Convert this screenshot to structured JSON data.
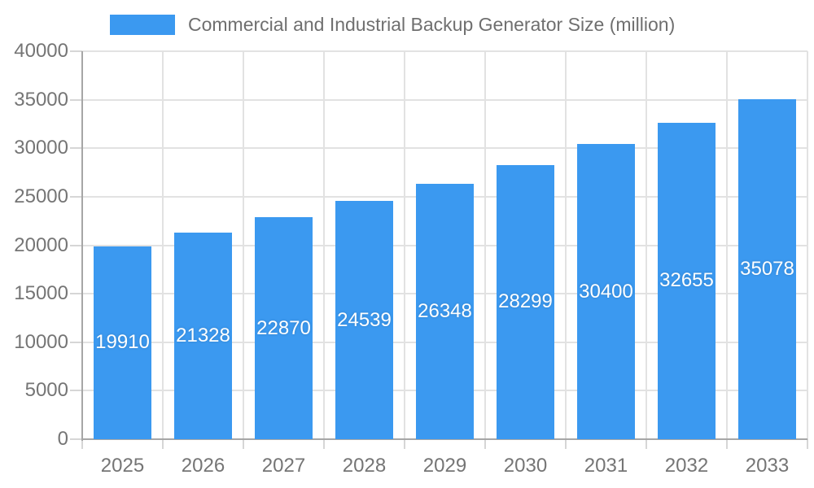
{
  "chart_data": {
    "type": "bar",
    "title": "Commercial and Industrial Backup Generator Size (million)",
    "categories": [
      "2025",
      "2026",
      "2027",
      "2028",
      "2029",
      "2030",
      "2031",
      "2032",
      "2033"
    ],
    "values": [
      19910,
      21328,
      22870,
      24539,
      26348,
      28299,
      30400,
      32655,
      35078
    ],
    "value_labels": [
      "19910",
      "21328",
      "22870",
      "24539",
      "26348",
      "28299",
      "30400",
      "32655",
      "35078"
    ],
    "xlabel": "",
    "ylabel": "",
    "ylim": [
      0,
      40000
    ],
    "ytick_step": 5000,
    "yticks": [
      0,
      5000,
      10000,
      15000,
      20000,
      25000,
      30000,
      35000,
      40000
    ],
    "ytick_labels": [
      "0",
      "5000",
      "10000",
      "15000",
      "20000",
      "25000",
      "30000",
      "35000",
      "40000"
    ],
    "grid": true,
    "legend_position": "top",
    "value_labels_position": "inside-center"
  },
  "colors": {
    "bar": "#3b99f0",
    "bar_value_label": "#ffffff",
    "axis_line": "#a6a6a6",
    "gridline": "#e2e2e2",
    "tick_mark": "#d6d6d6",
    "tick_label": "#757575",
    "title_text": "#6f6f6f",
    "background": "#ffffff"
  }
}
